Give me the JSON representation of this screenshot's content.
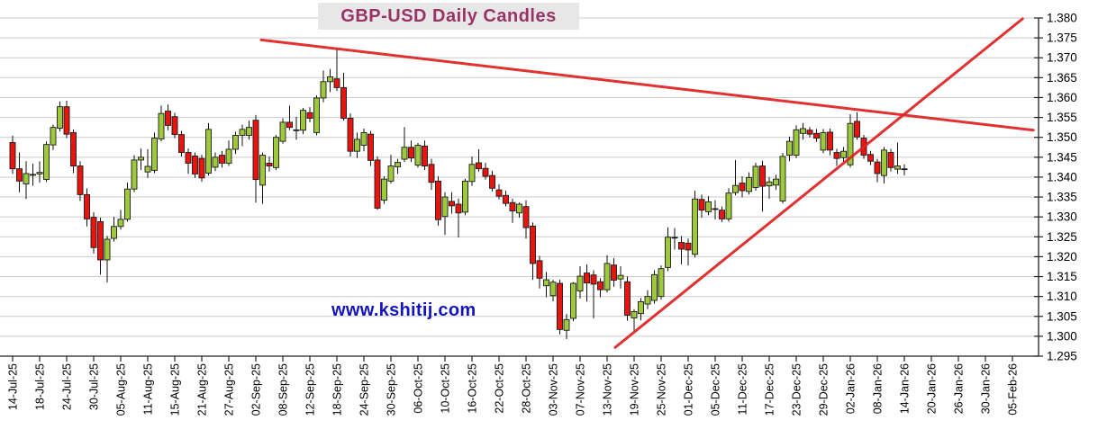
{
  "title": "GBP-USD Daily Candles",
  "watermark_text": "www.kshitij.com",
  "colors": {
    "up_candle": "#9FC93C",
    "down_candle": "#E8140E",
    "doji_dash": "#1A1A1A",
    "candle_border": "#1A1A1A",
    "wick": "#111111",
    "trendline": "#E02020",
    "grid": "#CBCBCB",
    "axis": "#222222",
    "title_color": "#993366",
    "title_bg": "#E7E7E7",
    "watermark_color": "#1414BE",
    "background": "#FFFFFF"
  },
  "chart_data": {
    "type": "candlestick",
    "title": "GBP-USD Daily Candles",
    "xlabel": "",
    "ylabel": "",
    "grid": true,
    "legend": false,
    "ylim": [
      1.295,
      1.38
    ],
    "y_step": 0.005,
    "y_labels": [
      "1.380",
      "1.375",
      "1.370",
      "1.365",
      "1.360",
      "1.355",
      "1.350",
      "1.345",
      "1.340",
      "1.335",
      "1.330",
      "1.325",
      "1.320",
      "1.315",
      "1.310",
      "1.305",
      "1.300",
      "1.295"
    ],
    "x_labels": [
      "14-Jul-25",
      "18-Jul-25",
      "24-Jul-25",
      "30-Jul-25",
      "05-Aug-25",
      "11-Aug-25",
      "15-Aug-25",
      "21-Aug-25",
      "27-Aug-25",
      "02-Sep-25",
      "08-Sep-25",
      "12-Sep-25",
      "18-Sep-25",
      "24-Sep-25",
      "30-Sep-25",
      "06-Oct-25",
      "10-Oct-25",
      "16-Oct-25",
      "22-Oct-25",
      "28-Oct-25",
      "03-Nov-25",
      "07-Nov-25",
      "13-Nov-25",
      "19-Nov-25",
      "25-Nov-25",
      "01-Dec-25",
      "05-Dec-25",
      "11-Dec-25",
      "17-Dec-25",
      "23-Dec-25",
      "29-Dec-25",
      "02-Jan-26",
      "08-Jan-26",
      "14-Jan-26",
      "20-Jan-26",
      "26-Jan-26",
      "30-Jan-26",
      "05-Feb-26"
    ],
    "label_every": 4,
    "candles_note": "arrays are [date, open, high, low, close]",
    "candles": [
      [
        "14-Jul-25",
        1.3487,
        1.3504,
        1.3408,
        1.3421
      ],
      [
        "15-Jul-25",
        1.3421,
        1.3462,
        1.3362,
        1.339
      ],
      [
        "16-Jul-25",
        1.3383,
        1.344,
        1.3345,
        1.3409
      ],
      [
        "17-Jul-25",
        1.3406,
        1.3434,
        1.3378,
        1.3403
      ],
      [
        "18-Jul-25",
        1.3408,
        1.344,
        1.3386,
        1.3412
      ],
      [
        "21-Jul-25",
        1.3394,
        1.349,
        1.3388,
        1.3482
      ],
      [
        "22-Jul-25",
        1.3481,
        1.3532,
        1.3468,
        1.3525
      ],
      [
        "23-Jul-25",
        1.3523,
        1.359,
        1.3515,
        1.3577
      ],
      [
        "24-Jul-25",
        1.3577,
        1.3592,
        1.3498,
        1.3508
      ],
      [
        "25-Jul-25",
        1.3512,
        1.352,
        1.341,
        1.3428
      ],
      [
        "28-Jul-25",
        1.3428,
        1.344,
        1.334,
        1.3356
      ],
      [
        "29-Jul-25",
        1.3356,
        1.3372,
        1.3276,
        1.3295
      ],
      [
        "30-Jul-25",
        1.3299,
        1.3312,
        1.3208,
        1.3223
      ],
      [
        "31-Jul-25",
        1.3288,
        1.3298,
        1.3155,
        1.3192
      ],
      [
        "01-Aug-25",
        1.3192,
        1.3252,
        1.3135,
        1.3244
      ],
      [
        "04-Aug-25",
        1.3246,
        1.33,
        1.3238,
        1.3276
      ],
      [
        "05-Aug-25",
        1.3276,
        1.3318,
        1.3268,
        1.3294
      ],
      [
        "06-Aug-25",
        1.3294,
        1.3386,
        1.3288,
        1.337
      ],
      [
        "07-Aug-25",
        1.337,
        1.3455,
        1.3362,
        1.3443
      ],
      [
        "08-Aug-25",
        1.3443,
        1.3472,
        1.3418,
        1.345
      ],
      [
        "11-Aug-25",
        1.3413,
        1.347,
        1.3398,
        1.3427
      ],
      [
        "12-Aug-25",
        1.3417,
        1.3512,
        1.341,
        1.3498
      ],
      [
        "13-Aug-25",
        1.3496,
        1.358,
        1.349,
        1.356
      ],
      [
        "14-Aug-25",
        1.3566,
        1.3582,
        1.3518,
        1.353
      ],
      [
        "15-Aug-25",
        1.3552,
        1.3562,
        1.3498,
        1.3507
      ],
      [
        "18-Aug-25",
        1.3507,
        1.3516,
        1.3452,
        1.3462
      ],
      [
        "19-Aug-25",
        1.3462,
        1.3472,
        1.3408,
        1.3435
      ],
      [
        "20-Aug-25",
        1.3453,
        1.3462,
        1.3398,
        1.3408
      ],
      [
        "21-Aug-25",
        1.3447,
        1.3456,
        1.3388,
        1.3398
      ],
      [
        "22-Aug-25",
        1.341,
        1.3536,
        1.3404,
        1.352
      ],
      [
        "25-Aug-25",
        1.3425,
        1.3462,
        1.3415,
        1.345
      ],
      [
        "26-Aug-25",
        1.3455,
        1.3466,
        1.3424,
        1.3435
      ],
      [
        "27-Aug-25",
        1.3435,
        1.3492,
        1.3428,
        1.347
      ],
      [
        "28-Aug-25",
        1.347,
        1.3514,
        1.3458,
        1.3505
      ],
      [
        "29-Aug-25",
        1.3505,
        1.3532,
        1.3478,
        1.352
      ],
      [
        "01-Sep-25",
        1.3505,
        1.3542,
        1.3494,
        1.3525
      ],
      [
        "02-Sep-25",
        1.3543,
        1.3556,
        1.3336,
        1.3394
      ],
      [
        "03-Sep-25",
        1.338,
        1.3462,
        1.3333,
        1.3455
      ],
      [
        "04-Sep-25",
        1.3435,
        1.3452,
        1.3414,
        1.3428
      ],
      [
        "05-Sep-25",
        1.3424,
        1.3506,
        1.3418,
        1.35
      ],
      [
        "08-Sep-25",
        1.349,
        1.3548,
        1.3484,
        1.3538
      ],
      [
        "09-Sep-25",
        1.3538,
        1.358,
        1.3518,
        1.3525
      ],
      [
        "10-Sep-25",
        1.3517,
        1.3552,
        1.3494,
        1.3518
      ],
      [
        "11-Sep-25",
        1.3518,
        1.3574,
        1.3508,
        1.3568
      ],
      [
        "12-Sep-25",
        1.3562,
        1.3576,
        1.3538,
        1.3548
      ],
      [
        "15-Sep-25",
        1.3512,
        1.3606,
        1.3505,
        1.3599
      ],
      [
        "16-Sep-25",
        1.3599,
        1.3668,
        1.3588,
        1.364
      ],
      [
        "17-Sep-25",
        1.364,
        1.3672,
        1.3614,
        1.3652
      ],
      [
        "18-Sep-25",
        1.3647,
        1.3722,
        1.3617,
        1.3625
      ],
      [
        "19-Sep-25",
        1.3625,
        1.3662,
        1.3542,
        1.3548
      ],
      [
        "22-Sep-25",
        1.3548,
        1.356,
        1.3452,
        1.3465
      ],
      [
        "23-Sep-25",
        1.3465,
        1.3512,
        1.3448,
        1.3495
      ],
      [
        "24-Sep-25",
        1.348,
        1.3522,
        1.3465,
        1.3512
      ],
      [
        "25-Sep-25",
        1.3508,
        1.3516,
        1.3428,
        1.3442
      ],
      [
        "26-Sep-25",
        1.3443,
        1.3452,
        1.3318,
        1.3322
      ],
      [
        "29-Sep-25",
        1.3342,
        1.3402,
        1.3333,
        1.3395
      ],
      [
        "30-Sep-25",
        1.339,
        1.3456,
        1.3384,
        1.3428
      ],
      [
        "01-Oct-25",
        1.3426,
        1.3446,
        1.3408,
        1.3437
      ],
      [
        "02-Oct-25",
        1.3445,
        1.3526,
        1.3438,
        1.3475
      ],
      [
        "03-Oct-25",
        1.3475,
        1.3492,
        1.3438,
        1.3448
      ],
      [
        "06-Oct-25",
        1.343,
        1.3486,
        1.3424,
        1.348
      ],
      [
        "07-Oct-25",
        1.3478,
        1.3492,
        1.3418,
        1.3428
      ],
      [
        "08-Oct-25",
        1.3432,
        1.3446,
        1.3368,
        1.3387
      ],
      [
        "09-Oct-25",
        1.339,
        1.3402,
        1.3278,
        1.3293
      ],
      [
        "10-Oct-25",
        1.3301,
        1.3362,
        1.3255,
        1.335
      ],
      [
        "13-Oct-25",
        1.3339,
        1.3362,
        1.3308,
        1.3328
      ],
      [
        "14-Oct-25",
        1.3332,
        1.3346,
        1.3248,
        1.331
      ],
      [
        "15-Oct-25",
        1.3312,
        1.3396,
        1.3304,
        1.339
      ],
      [
        "16-Oct-25",
        1.3389,
        1.3452,
        1.3378,
        1.3432
      ],
      [
        "17-Oct-25",
        1.3436,
        1.347,
        1.3414,
        1.3421
      ],
      [
        "20-Oct-25",
        1.3422,
        1.3436,
        1.3394,
        1.3402
      ],
      [
        "21-Oct-25",
        1.3404,
        1.3416,
        1.3364,
        1.3372
      ],
      [
        "22-Oct-25",
        1.3368,
        1.3382,
        1.3344,
        1.3352
      ],
      [
        "23-Oct-25",
        1.3354,
        1.3366,
        1.3326,
        1.3334
      ],
      [
        "24-Oct-25",
        1.3336,
        1.3346,
        1.3285,
        1.3315
      ],
      [
        "27-Oct-25",
        1.331,
        1.3336,
        1.3298,
        1.3332
      ],
      [
        "28-Oct-25",
        1.3326,
        1.3342,
        1.3246,
        1.3273
      ],
      [
        "29-Oct-25",
        1.3277,
        1.3286,
        1.3142,
        1.3183
      ],
      [
        "30-Oct-25",
        1.319,
        1.3202,
        1.312,
        1.3146
      ],
      [
        "31-Oct-25",
        1.3127,
        1.3162,
        1.3098,
        1.3142
      ],
      [
        "03-Nov-25",
        1.3102,
        1.3142,
        1.3088,
        1.3136
      ],
      [
        "04-Nov-25",
        1.3133,
        1.3142,
        1.3005,
        1.3017
      ],
      [
        "05-Nov-25",
        1.3015,
        1.3056,
        1.2993,
        1.3042
      ],
      [
        "06-Nov-25",
        1.3045,
        1.3136,
        1.3038,
        1.3133
      ],
      [
        "07-Nov-25",
        1.3114,
        1.3176,
        1.3095,
        1.3151
      ],
      [
        "10-Nov-25",
        1.3159,
        1.3181,
        1.3087,
        1.3134
      ],
      [
        "11-Nov-25",
        1.3154,
        1.3166,
        1.3045,
        1.3131
      ],
      [
        "12-Nov-25",
        1.3137,
        1.3146,
        1.3098,
        1.3117
      ],
      [
        "13-Nov-25",
        1.3117,
        1.3204,
        1.311,
        1.3183
      ],
      [
        "14-Nov-25",
        1.3179,
        1.3196,
        1.3124,
        1.3141
      ],
      [
        "17-Nov-25",
        1.3144,
        1.3176,
        1.312,
        1.3153
      ],
      [
        "18-Nov-25",
        1.3137,
        1.315,
        1.3039,
        1.3053
      ],
      [
        "19-Nov-25",
        1.3046,
        1.3068,
        1.3014,
        1.3062
      ],
      [
        "20-Nov-25",
        1.3057,
        1.3096,
        1.304,
        1.3087
      ],
      [
        "21-Nov-25",
        1.3081,
        1.3116,
        1.3068,
        1.31
      ],
      [
        "24-Nov-25",
        1.309,
        1.3166,
        1.3082,
        1.3155
      ],
      [
        "25-Nov-25",
        1.31,
        1.3178,
        1.3092,
        1.317
      ],
      [
        "26-Nov-25",
        1.3173,
        1.3274,
        1.3164,
        1.3249
      ],
      [
        "27-Nov-25",
        1.3246,
        1.3272,
        1.3218,
        1.3248
      ],
      [
        "28-Nov-25",
        1.3236,
        1.3252,
        1.3181,
        1.3219
      ],
      [
        "01-Dec-25",
        1.3234,
        1.3246,
        1.3178,
        1.3217
      ],
      [
        "02-Dec-25",
        1.3206,
        1.3366,
        1.3198,
        1.3345
      ],
      [
        "03-Dec-25",
        1.3344,
        1.3356,
        1.3298,
        1.3317
      ],
      [
        "04-Dec-25",
        1.3313,
        1.3352,
        1.3304,
        1.3338
      ],
      [
        "05-Dec-25",
        1.3318,
        1.3342,
        1.3294,
        1.332
      ],
      [
        "08-Dec-25",
        1.3317,
        1.3326,
        1.3287,
        1.3295
      ],
      [
        "09-Dec-25",
        1.3295,
        1.3372,
        1.3288,
        1.336
      ],
      [
        "10-Dec-25",
        1.3361,
        1.3443,
        1.3354,
        1.3379
      ],
      [
        "11-Dec-25",
        1.3385,
        1.3402,
        1.3349,
        1.3366
      ],
      [
        "12-Dec-25",
        1.3364,
        1.3412,
        1.3356,
        1.3399
      ],
      [
        "15-Dec-25",
        1.3374,
        1.3436,
        1.3366,
        1.3427
      ],
      [
        "16-Dec-25",
        1.3428,
        1.3441,
        1.3313,
        1.3377
      ],
      [
        "17-Dec-25",
        1.3378,
        1.34,
        1.3346,
        1.3388
      ],
      [
        "18-Dec-25",
        1.338,
        1.3406,
        1.3368,
        1.3395
      ],
      [
        "19-Dec-25",
        1.334,
        1.3461,
        1.3334,
        1.3452
      ],
      [
        "22-Dec-25",
        1.3455,
        1.3502,
        1.344,
        1.349
      ],
      [
        "23-Dec-25",
        1.3455,
        1.353,
        1.3448,
        1.3519
      ],
      [
        "24-Dec-25",
        1.351,
        1.3536,
        1.3494,
        1.3522
      ],
      [
        "25-Dec-25",
        1.3518,
        1.3526,
        1.35,
        1.3508
      ],
      [
        "26-Dec-25",
        1.351,
        1.3521,
        1.3489,
        1.3498
      ],
      [
        "29-Dec-25",
        1.3468,
        1.3521,
        1.346,
        1.3512
      ],
      [
        "30-Dec-25",
        1.3513,
        1.3522,
        1.3455,
        1.3468
      ],
      [
        "31-Dec-25",
        1.3462,
        1.3471,
        1.3428,
        1.3447
      ],
      [
        "01-Jan-26",
        1.3449,
        1.3476,
        1.3438,
        1.3465
      ],
      [
        "02-Jan-26",
        1.3431,
        1.3558,
        1.3424,
        1.3535
      ],
      [
        "05-Jan-26",
        1.354,
        1.3563,
        1.3494,
        1.3501
      ],
      [
        "06-Jan-26",
        1.3498,
        1.3506,
        1.3446,
        1.3455
      ],
      [
        "07-Jan-26",
        1.3457,
        1.3466,
        1.343,
        1.344
      ],
      [
        "08-Jan-26",
        1.3438,
        1.3446,
        1.3387,
        1.3409
      ],
      [
        "09-Jan-26",
        1.3404,
        1.3476,
        1.3384,
        1.3468
      ],
      [
        "12-Jan-26",
        1.3462,
        1.3471,
        1.3414,
        1.3424
      ],
      [
        "13-Jan-26",
        1.342,
        1.3487,
        1.3408,
        1.3428
      ],
      [
        "14-Jan-26",
        1.342,
        1.3432,
        1.3404,
        1.3417
      ]
    ],
    "trendlines": [
      {
        "name": "descending-resistance",
        "i1": 36.8,
        "p1": 1.3745,
        "i2": 151.1,
        "p2": 1.3518
      },
      {
        "name": "ascending-support",
        "i1": 89.2,
        "p1": 1.2972,
        "i2": 149.5,
        "p2": 1.3798
      }
    ]
  }
}
